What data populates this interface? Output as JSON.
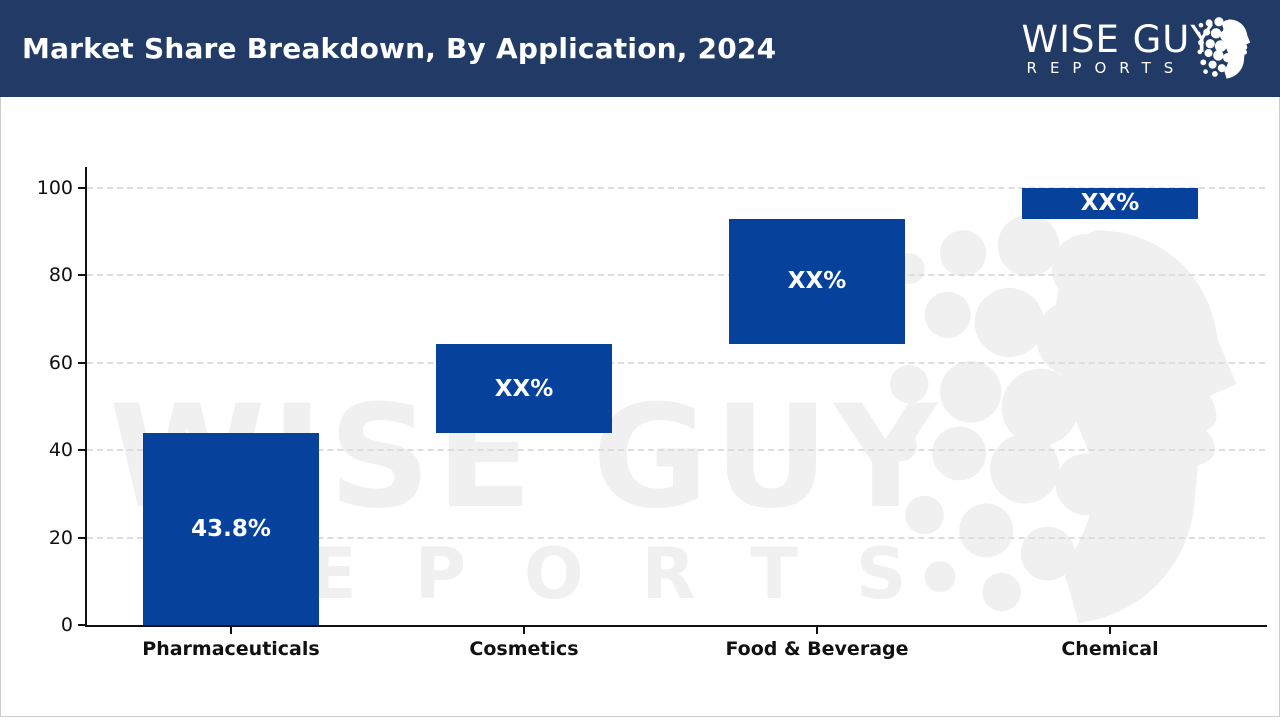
{
  "header": {
    "title": "Market Share Breakdown, By Application, 2024",
    "bg_color": "#213A66",
    "logo": {
      "line1": "WISE GUY",
      "line2": "REPORTS",
      "icon": "dotted-head-icon",
      "color": "#FFFFFF"
    }
  },
  "watermark": {
    "line1": "WISE GUY",
    "line2": "REPORTS",
    "icon": "dotted-head-icon",
    "color": "#F0F0F0"
  },
  "frame_color": "#CCCCCC",
  "chart_data": {
    "type": "bar",
    "subtype": "waterfall",
    "title": "Market Share Breakdown, By Application, 2024",
    "categories": [
      "Pharmaceuticals",
      "Cosmetics",
      "Food & Beverage",
      "Chemical"
    ],
    "segments": [
      {
        "category": "Pharmaceuticals",
        "start": 0,
        "end": 43.8,
        "label": "43.8%"
      },
      {
        "category": "Cosmetics",
        "start": 43.8,
        "end": 64.3,
        "label": "XX%"
      },
      {
        "category": "Food & Beverage",
        "start": 64.3,
        "end": 92.8,
        "label": "XX%"
      },
      {
        "category": "Chemical",
        "start": 92.8,
        "end": 100,
        "label": "XX%"
      }
    ],
    "yticks": [
      0,
      20,
      40,
      60,
      80,
      100
    ],
    "ylim": [
      0,
      105
    ],
    "xlabel": "",
    "ylabel": "",
    "grid": {
      "axis": "y",
      "style": "dashed",
      "color": "#DDDDDD"
    },
    "bar_color": "#06429C",
    "bar_label_color": "#FFFFFF",
    "axis_color": "#111111",
    "legend": null
  }
}
